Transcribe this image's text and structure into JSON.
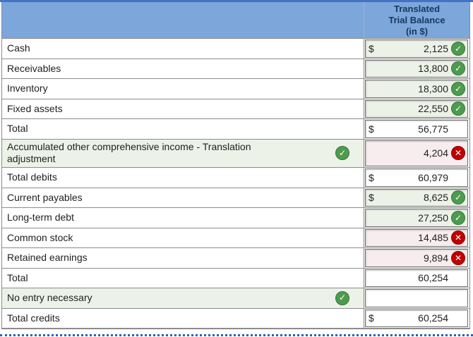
{
  "header": {
    "column_title_line1": "Translated",
    "column_title_line2": "Trial Balance",
    "column_title_line3": "(in $)"
  },
  "colors": {
    "header_bg": "#7da6db",
    "header_top_border": "#4472c4",
    "header_text": "#17375e",
    "grid_border": "#8c8c8c",
    "value_box_border": "#6e6e6e",
    "tint_green": "#edf2e8",
    "tint_pink": "#f8edee",
    "correct_green": "#4d9b4f",
    "correct_green_border": "#35773a",
    "incorrect_red": "#c00000",
    "incorrect_red_border": "#8b0000",
    "dotted_line_blue": "#3060ae",
    "text_color": "#1f1f1f"
  },
  "rows": [
    {
      "label": "Cash",
      "dollar": "$",
      "value": "2,125",
      "value_icon": "check",
      "value_bg": "green",
      "label_bg": "white",
      "label_icon": "none",
      "tall": false
    },
    {
      "label": "Receivables",
      "dollar": "",
      "value": "13,800",
      "value_icon": "check",
      "value_bg": "green",
      "label_bg": "white",
      "label_icon": "none",
      "tall": false
    },
    {
      "label": "Inventory",
      "dollar": "",
      "value": "18,300",
      "value_icon": "check",
      "value_bg": "green",
      "label_bg": "white",
      "label_icon": "none",
      "tall": false
    },
    {
      "label": "Fixed assets",
      "dollar": "",
      "value": "22,550",
      "value_icon": "check",
      "value_bg": "green",
      "label_bg": "white",
      "label_icon": "none",
      "tall": false
    },
    {
      "label": "Total",
      "dollar": "$",
      "value": "56,775",
      "value_icon": "none",
      "value_bg": "white",
      "label_bg": "white",
      "label_icon": "none",
      "tall": false
    },
    {
      "label": "Accumulated other comprehensive income - Translation adjustment",
      "dollar": "",
      "value": "4,204",
      "value_icon": "cross",
      "value_bg": "pink",
      "label_bg": "green",
      "label_icon": "check",
      "tall": true
    },
    {
      "label": "Total debits",
      "dollar": "$",
      "value": "60,979",
      "value_icon": "none",
      "value_bg": "white",
      "label_bg": "white",
      "label_icon": "none",
      "tall": false
    },
    {
      "label": "Current payables",
      "dollar": "$",
      "value": "8,625",
      "value_icon": "check",
      "value_bg": "green",
      "label_bg": "white",
      "label_icon": "none",
      "tall": false
    },
    {
      "label": "Long-term debt",
      "dollar": "",
      "value": "27,250",
      "value_icon": "check",
      "value_bg": "green",
      "label_bg": "white",
      "label_icon": "none",
      "tall": false
    },
    {
      "label": "Common stock",
      "dollar": "",
      "value": "14,485",
      "value_icon": "cross",
      "value_bg": "pink",
      "label_bg": "white",
      "label_icon": "none",
      "tall": false
    },
    {
      "label": "Retained earnings",
      "dollar": "",
      "value": "9,894",
      "value_icon": "cross",
      "value_bg": "pink",
      "label_bg": "white",
      "label_icon": "none",
      "tall": false
    },
    {
      "label": "Total",
      "dollar": "",
      "value": "60,254",
      "value_icon": "none",
      "value_bg": "white",
      "label_bg": "white",
      "label_icon": "none",
      "tall": false
    },
    {
      "label": "No entry necessary",
      "dollar": "",
      "value": "",
      "value_icon": "none",
      "value_bg": "white",
      "label_bg": "green",
      "label_icon": "check",
      "tall": false
    },
    {
      "label": "Total credits",
      "dollar": "$",
      "value": "60,254",
      "value_icon": "none",
      "value_bg": "white",
      "label_bg": "white",
      "label_icon": "none",
      "tall": false
    }
  ]
}
